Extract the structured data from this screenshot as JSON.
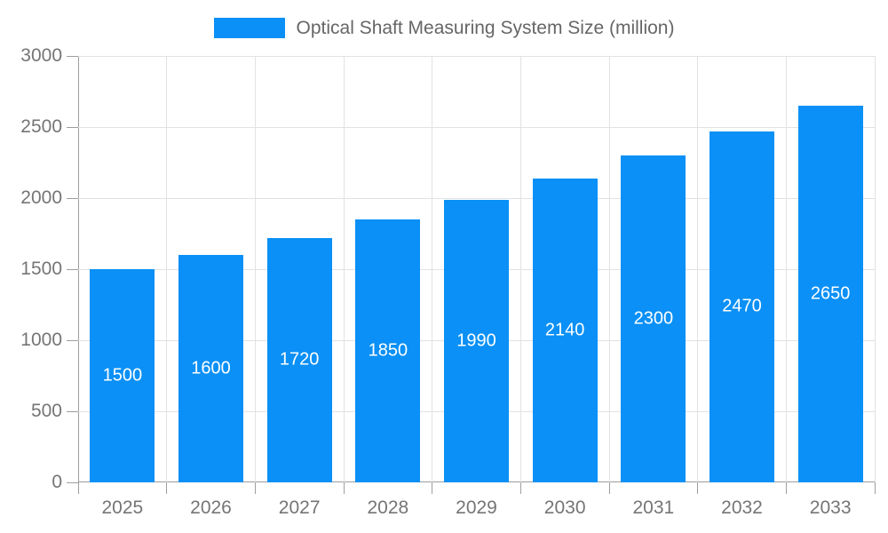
{
  "chart_data": {
    "type": "bar",
    "title": "Optical Shaft Measuring System Size (million)",
    "categories": [
      "2025",
      "2026",
      "2027",
      "2028",
      "2029",
      "2030",
      "2031",
      "2032",
      "2033"
    ],
    "values": [
      1500,
      1600,
      1720,
      1850,
      1990,
      2140,
      2300,
      2470,
      2650
    ],
    "xlabel": "",
    "ylabel": "",
    "ylim": [
      0,
      3000
    ],
    "yticks": [
      0,
      500,
      1000,
      1500,
      2000,
      2500,
      3000
    ],
    "grid": true,
    "legend_position": "top-center",
    "data_labels": "inside-center"
  },
  "colors": {
    "bar": "#0a90f6",
    "bar_label": "#ffffff",
    "grid": "#e2e2e2",
    "axis": "#9e9e9e",
    "tick_text": "#757575",
    "legend_text": "#666666",
    "background": "#ffffff"
  }
}
